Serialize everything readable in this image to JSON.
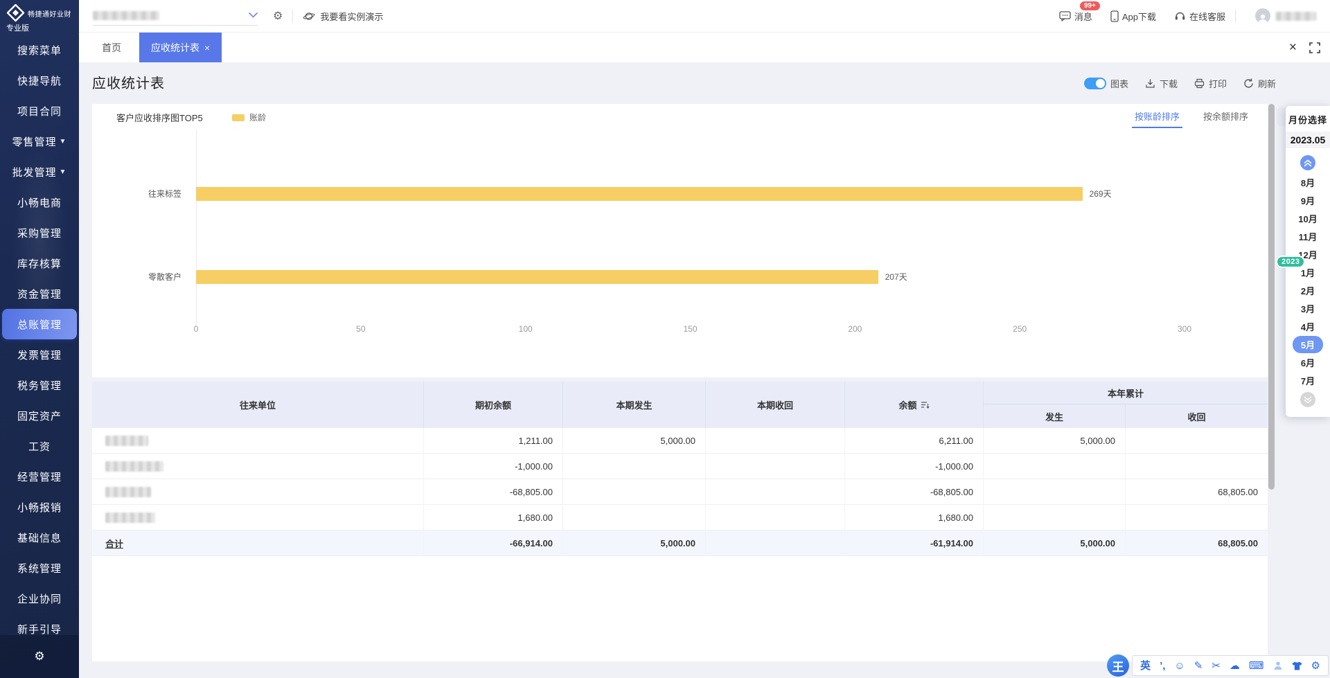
{
  "brand": {
    "name": "畅捷通好业财",
    "edition": "专业版"
  },
  "sidebar": {
    "items": [
      {
        "label": "搜索菜单",
        "active": false,
        "arrow": false
      },
      {
        "label": "快捷导航",
        "active": false,
        "arrow": false
      },
      {
        "label": "项目合同",
        "active": false,
        "arrow": false
      },
      {
        "label": "零售管理",
        "active": false,
        "arrow": true
      },
      {
        "label": "批发管理",
        "active": false,
        "arrow": true
      },
      {
        "label": "小畅电商",
        "active": false,
        "arrow": false
      },
      {
        "label": "采购管理",
        "active": false,
        "arrow": false
      },
      {
        "label": "库存核算",
        "active": false,
        "arrow": false
      },
      {
        "label": "资金管理",
        "active": false,
        "arrow": false
      },
      {
        "label": "总账管理",
        "active": true,
        "arrow": false
      },
      {
        "label": "发票管理",
        "active": false,
        "arrow": false
      },
      {
        "label": "税务管理",
        "active": false,
        "arrow": false
      },
      {
        "label": "固定资产",
        "active": false,
        "arrow": false
      },
      {
        "label": "工资",
        "active": false,
        "arrow": false
      },
      {
        "label": "经营管理",
        "active": false,
        "arrow": false
      },
      {
        "label": "小畅报销",
        "active": false,
        "arrow": false
      },
      {
        "label": "基础信息",
        "active": false,
        "arrow": false
      },
      {
        "label": "系统管理",
        "active": false,
        "arrow": false
      },
      {
        "label": "企业协同",
        "active": false,
        "arrow": false
      },
      {
        "label": "新手引导",
        "active": false,
        "arrow": false
      }
    ]
  },
  "topbar": {
    "demo_text": "我要看实例演示",
    "message": "消息",
    "message_badge": "99+",
    "app_download": "App下载",
    "online_service": "在线客服"
  },
  "tabs": [
    {
      "label": "首页",
      "active": false,
      "closable": false
    },
    {
      "label": "应收统计表",
      "active": true,
      "closable": true
    }
  ],
  "page": {
    "title": "应收统计表",
    "toggle_label": "图表",
    "toggle_on": true,
    "download": "下载",
    "print": "打印",
    "refresh": "刷新"
  },
  "chart_data": {
    "type": "bar",
    "orientation": "horizontal",
    "title": "客户应收排序图TOP5",
    "legend": [
      {
        "label": "账龄",
        "color": "#F6CE63"
      }
    ],
    "categories": [
      "往来标签",
      "零散客户"
    ],
    "values": [
      269,
      207
    ],
    "value_labels": [
      "269天",
      "207天"
    ],
    "unit": "天",
    "xlim": [
      0,
      300
    ],
    "x_ticks": [
      0,
      50,
      100,
      150,
      200,
      250,
      300
    ],
    "bar_color": "#F6CE63",
    "grid": false,
    "sort_tabs": [
      {
        "label": "按账龄排序",
        "active": true
      },
      {
        "label": "按余额排序",
        "active": false
      }
    ]
  },
  "table": {
    "columns": [
      "往来单位",
      "期初余额",
      "本期发生",
      "本期收回",
      "余额"
    ],
    "group_header": {
      "label": "本年累计",
      "children": [
        "发生",
        "收回"
      ]
    },
    "rows": [
      {
        "redacted_name": true,
        "values": [
          "1,211.00",
          "5,000.00",
          "",
          "6,211.00",
          "5,000.00",
          ""
        ]
      },
      {
        "redacted_name": true,
        "values": [
          "-1,000.00",
          "",
          "",
          "-1,000.00",
          "",
          ""
        ]
      },
      {
        "redacted_name": true,
        "values": [
          "-68,805.00",
          "",
          "",
          "-68,805.00",
          "",
          "68,805.00"
        ]
      },
      {
        "redacted_name": true,
        "values": [
          "1,680.00",
          "",
          "",
          "1,680.00",
          "",
          ""
        ]
      }
    ],
    "total": {
      "label": "合计",
      "values": [
        "-66,914.00",
        "5,000.00",
        "",
        "-61,914.00",
        "5,000.00",
        "68,805.00"
      ]
    }
  },
  "month_panel": {
    "title": "月份选择",
    "current": "2023.05",
    "year_badge": "2023",
    "months": [
      "8月",
      "9月",
      "10月",
      "11月",
      "12月",
      "1月",
      "2月",
      "3月",
      "4月",
      "5月",
      "6月",
      "7月"
    ],
    "active": "5月"
  },
  "ime": {
    "logo": "王",
    "lang": "英",
    "punct": "’,"
  },
  "colors": {
    "accent_blue": "#5878E9",
    "toggle_blue": "#3E9EF6",
    "bar_yellow": "#F6CE63",
    "month_active_blue": "#6E96F3",
    "year_badge_green": "#2FBE9B",
    "message_badge_red": "#F25A5A"
  }
}
